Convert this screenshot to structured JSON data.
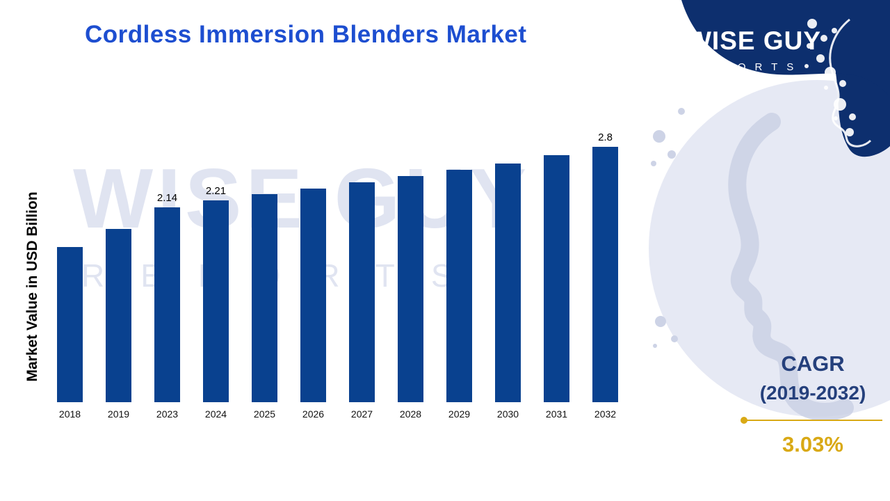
{
  "title": "Cordless Immersion Blenders Market",
  "logo": {
    "name_line": "WISE GUY",
    "sub_line": "REPORTS"
  },
  "watermark": {
    "name_line": "WISE GUY",
    "sub_line": "REPORTS"
  },
  "chart_data": {
    "type": "bar",
    "title": "Cordless Immersion Blenders Market",
    "ylabel": "Market Value in USD Billion",
    "categories": [
      "2018",
      "2019",
      "2023",
      "2024",
      "2025",
      "2026",
      "2027",
      "2028",
      "2029",
      "2030",
      "2031",
      "2032"
    ],
    "values": [
      1.7,
      1.9,
      2.14,
      2.21,
      2.28,
      2.34,
      2.41,
      2.48,
      2.55,
      2.62,
      2.71,
      2.8
    ],
    "bar_labels": [
      "",
      "",
      "2.14",
      "2.21",
      "",
      "",
      "",
      "",
      "",
      "",
      "",
      "2.8"
    ],
    "ylim": [
      0,
      3
    ],
    "grid": false,
    "legend": false,
    "bar_color": "#09418f"
  },
  "cagr": {
    "label": "CAGR",
    "range": "(2019-2032)",
    "value": "3.03%"
  },
  "colors": {
    "title_blue": "#1d4ed0",
    "bar_navy": "#09418f",
    "corner_navy": "#0d2f6e",
    "cagr_navy": "#25407c",
    "gold": "#d9a915",
    "watermark_gray": "#ccd3e8"
  }
}
